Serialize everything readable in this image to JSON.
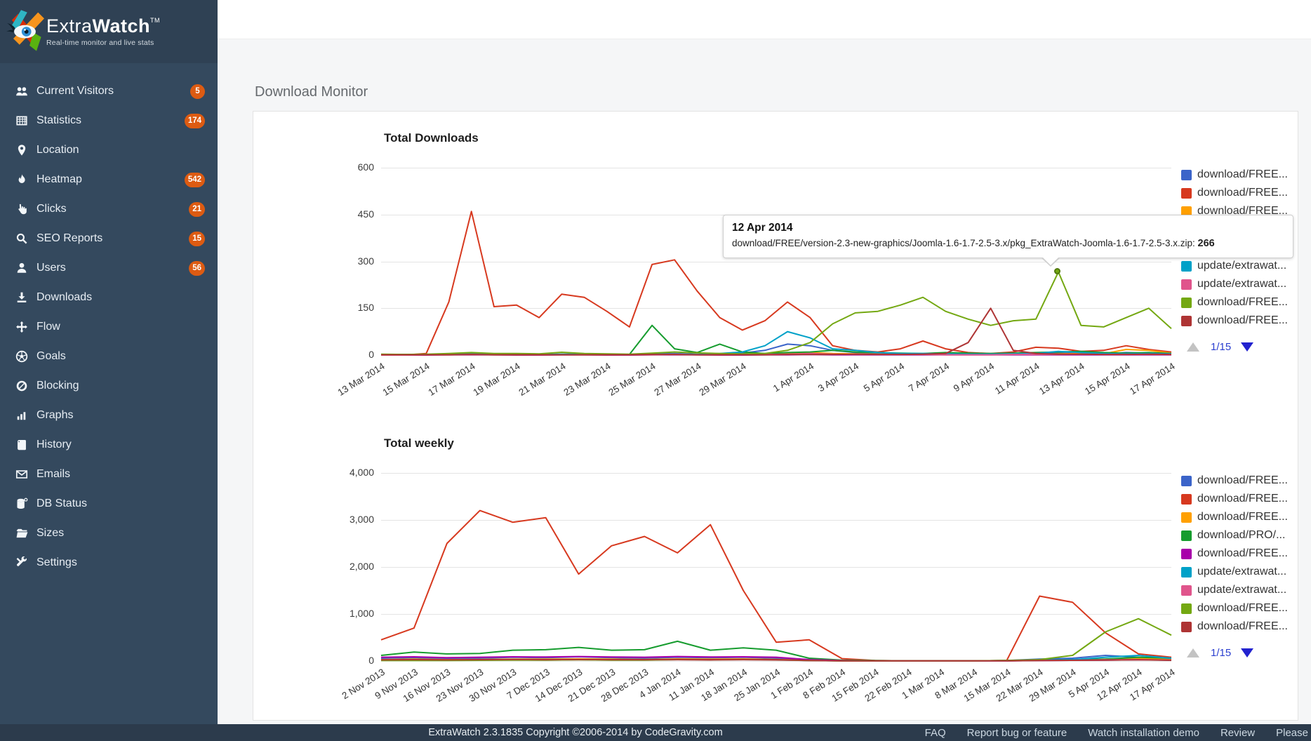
{
  "logo": {
    "name_light": "Extra",
    "name_bold": "Watch",
    "tm": "TM",
    "tagline": "Real-time monitor and live stats"
  },
  "page": {
    "title": "Download Monitor"
  },
  "sidebar": {
    "items": [
      {
        "label": "Current Visitors",
        "icon": "users",
        "badge": "5"
      },
      {
        "label": "Statistics",
        "icon": "table",
        "badge": "174"
      },
      {
        "label": "Location",
        "icon": "map-pin",
        "badge": ""
      },
      {
        "label": "Heatmap",
        "icon": "flame",
        "badge": "542"
      },
      {
        "label": "Clicks",
        "icon": "hand-pointer",
        "badge": "21"
      },
      {
        "label": "SEO Reports",
        "icon": "magnifier",
        "badge": "15"
      },
      {
        "label": "Users",
        "icon": "user",
        "badge": "56"
      },
      {
        "label": "Downloads",
        "icon": "download",
        "badge": ""
      },
      {
        "label": "Flow",
        "icon": "move-arrows",
        "badge": ""
      },
      {
        "label": "Goals",
        "icon": "soccer-ball",
        "badge": ""
      },
      {
        "label": "Blocking",
        "icon": "no-entry",
        "badge": ""
      },
      {
        "label": "Graphs",
        "icon": "bar-chart",
        "badge": ""
      },
      {
        "label": "History",
        "icon": "book",
        "badge": ""
      },
      {
        "label": "Emails",
        "icon": "envelope",
        "badge": ""
      },
      {
        "label": "DB Status",
        "icon": "database",
        "badge": ""
      },
      {
        "label": "Sizes",
        "icon": "folder",
        "badge": ""
      },
      {
        "label": "Settings",
        "icon": "tools",
        "badge": ""
      }
    ]
  },
  "tooltip": {
    "title": "12 Apr 2014",
    "text": "download/FREE/version-2.3-new-graphics/Joomla-1.6-1.7-2.5-3.x/pkg_ExtraWatch-Joomla-1.6-1.7-2.5-3.x.zip: ",
    "value": "266"
  },
  "chart_data": [
    {
      "type": "line",
      "title": "Total Downloads",
      "ylim": [
        0,
        600
      ],
      "ytick_values": [
        0,
        150,
        300,
        450,
        600
      ],
      "ytick_labels": [
        "0",
        "150",
        "300",
        "450",
        "600"
      ],
      "grid": true,
      "legend_position": "right",
      "pagination": "1/15",
      "tick_indices": [
        0,
        2,
        4,
        6,
        8,
        10,
        12,
        14,
        16,
        19,
        21,
        23,
        25,
        27,
        29,
        31,
        33,
        35
      ],
      "tick_labels": [
        "13 Mar 2014",
        "15 Mar 2014",
        "17 Mar 2014",
        "19 Mar 2014",
        "21 Mar 2014",
        "23 Mar 2014",
        "25 Mar 2014",
        "27 Mar 2014",
        "29 Mar 2014",
        "1 Apr 2014",
        "3 Apr 2014",
        "5 Apr 2014",
        "7 Apr 2014",
        "9 Apr 2014",
        "11 Apr 2014",
        "13 Apr 2014",
        "15 Apr 2014",
        "17 Apr 2014"
      ],
      "highlight": {
        "series": 7,
        "index": 30,
        "value": 266
      },
      "series": [
        {
          "name": "download/FREE...",
          "color": "#3b64c9",
          "values": [
            1,
            1,
            2,
            3,
            5,
            3,
            3,
            2,
            3,
            3,
            2,
            2,
            4,
            5,
            3,
            4,
            6,
            15,
            35,
            30,
            15,
            8,
            5,
            4,
            4,
            3,
            3,
            3,
            3,
            4,
            6,
            5,
            4,
            8,
            6,
            5
          ]
        },
        {
          "name": "download/FREE...",
          "color": "#d7391f",
          "values": [
            0,
            0,
            5,
            170,
            460,
            155,
            160,
            120,
            195,
            185,
            140,
            90,
            290,
            305,
            205,
            120,
            80,
            110,
            170,
            120,
            30,
            15,
            10,
            20,
            45,
            20,
            8,
            5,
            10,
            25,
            22,
            12,
            15,
            30,
            18,
            10
          ]
        },
        {
          "name": "download/FREE...",
          "color": "#ffa000",
          "values": [
            1,
            1,
            1,
            2,
            3,
            2,
            2,
            1,
            2,
            2,
            1,
            1,
            2,
            3,
            2,
            2,
            2,
            3,
            5,
            8,
            5,
            4,
            3,
            3,
            3,
            2,
            2,
            2,
            3,
            3,
            4,
            5,
            4,
            18,
            15,
            6
          ]
        },
        {
          "name": "download/PRO/...",
          "color": "#169c2e",
          "values": [
            2,
            2,
            2,
            3,
            3,
            3,
            2,
            2,
            3,
            3,
            2,
            2,
            95,
            20,
            8,
            35,
            10,
            5,
            8,
            10,
            15,
            10,
            8,
            6,
            5,
            8,
            6,
            5,
            6,
            8,
            10,
            12,
            8,
            6,
            8,
            5
          ]
        },
        {
          "name": "download/FREE...",
          "color": "#a800aa",
          "values": [
            0,
            0,
            0,
            1,
            1,
            1,
            0,
            0,
            1,
            1,
            0,
            0,
            1,
            1,
            1,
            0,
            0,
            1,
            1,
            2,
            1,
            1,
            1,
            1,
            1,
            1,
            1,
            1,
            1,
            1,
            1,
            1,
            1,
            1,
            1,
            1
          ]
        },
        {
          "name": "update/extrawat...",
          "color": "#00a1c8",
          "values": [
            1,
            1,
            2,
            2,
            3,
            2,
            2,
            2,
            2,
            2,
            2,
            2,
            3,
            3,
            2,
            5,
            10,
            30,
            75,
            55,
            20,
            15,
            8,
            5,
            5,
            4,
            3,
            3,
            4,
            5,
            12,
            8,
            5,
            4,
            5,
            4
          ]
        },
        {
          "name": "update/extrawat...",
          "color": "#e0558c",
          "values": [
            0,
            0,
            1,
            1,
            2,
            1,
            1,
            1,
            1,
            1,
            1,
            1,
            1,
            2,
            1,
            1,
            1,
            2,
            3,
            5,
            3,
            2,
            2,
            2,
            2,
            1,
            1,
            1,
            2,
            2,
            2,
            3,
            2,
            2,
            2,
            2
          ]
        },
        {
          "name": "download/FREE...",
          "color": "#74a812",
          "values": [
            3,
            2,
            3,
            5,
            8,
            5,
            5,
            4,
            9,
            5,
            4,
            3,
            6,
            10,
            7,
            5,
            4,
            5,
            15,
            40,
            100,
            135,
            140,
            160,
            185,
            140,
            115,
            95,
            110,
            115,
            266,
            95,
            90,
            120,
            150,
            85
          ]
        },
        {
          "name": "download/FREE...",
          "color": "#ae3434",
          "values": [
            1,
            1,
            1,
            1,
            2,
            1,
            1,
            1,
            1,
            1,
            1,
            1,
            2,
            2,
            1,
            1,
            1,
            1,
            2,
            2,
            2,
            3,
            2,
            2,
            3,
            5,
            40,
            150,
            15,
            5,
            3,
            3,
            2,
            2,
            3,
            2
          ]
        }
      ]
    },
    {
      "type": "line",
      "title": "Total weekly",
      "ylim": [
        0,
        4000
      ],
      "ytick_values": [
        0,
        1000,
        2000,
        3000,
        4000
      ],
      "ytick_labels": [
        "0",
        "1,000",
        "2,000",
        "3,000",
        "4,000"
      ],
      "grid": true,
      "legend_position": "right",
      "pagination": "1/15",
      "tick_indices": [
        0,
        1,
        2,
        3,
        4,
        5,
        6,
        7,
        8,
        9,
        10,
        11,
        12,
        13,
        14,
        15,
        16,
        17,
        18,
        19,
        20,
        21,
        22,
        23,
        24
      ],
      "tick_labels": [
        "2 Nov 2013",
        "9 Nov 2013",
        "16 Nov 2013",
        "23 Nov 2013",
        "30 Nov 2013",
        "7 Dec 2013",
        "14 Dec 2013",
        "21 Dec 2013",
        "28 Dec 2013",
        "4 Jan 2014",
        "11 Jan 2014",
        "18 Jan 2014",
        "25 Jan 2014",
        "1 Feb 2014",
        "8 Feb 2014",
        "15 Feb 2014",
        "22 Feb 2014",
        "1 Mar 2014",
        "8 Mar 2014",
        "15 Mar 2014",
        "22 Mar 2014",
        "29 Mar 2014",
        "5 Apr 2014",
        "12 Apr 2014",
        "17 Apr 2014"
      ],
      "series": [
        {
          "name": "download/FREE...",
          "color": "#3b64c9",
          "values": [
            60,
            70,
            50,
            60,
            80,
            70,
            90,
            70,
            60,
            80,
            70,
            80,
            60,
            30,
            10,
            5,
            5,
            5,
            5,
            10,
            40,
            60,
            120,
            80,
            60
          ]
        },
        {
          "name": "download/FREE...",
          "color": "#d7391f",
          "values": [
            450,
            700,
            2500,
            3200,
            2950,
            3050,
            1850,
            2450,
            2650,
            2300,
            2900,
            1500,
            400,
            450,
            50,
            10,
            5,
            5,
            5,
            10,
            1380,
            1250,
            600,
            150,
            80
          ]
        },
        {
          "name": "download/FREE...",
          "color": "#ffa000",
          "values": [
            30,
            40,
            30,
            35,
            40,
            40,
            45,
            40,
            35,
            45,
            40,
            45,
            35,
            15,
            5,
            5,
            5,
            5,
            5,
            5,
            15,
            25,
            40,
            60,
            30
          ]
        },
        {
          "name": "download/PRO/...",
          "color": "#169c2e",
          "values": [
            120,
            190,
            150,
            160,
            230,
            240,
            290,
            230,
            240,
            420,
            230,
            280,
            230,
            60,
            20,
            10,
            5,
            5,
            5,
            10,
            20,
            30,
            40,
            80,
            60
          ]
        },
        {
          "name": "download/FREE...",
          "color": "#a800aa",
          "values": [
            80,
            90,
            70,
            80,
            90,
            85,
            95,
            85,
            80,
            95,
            85,
            90,
            80,
            30,
            10,
            5,
            5,
            5,
            5,
            5,
            10,
            15,
            20,
            25,
            20
          ]
        },
        {
          "name": "update/extrawat...",
          "color": "#00a1c8",
          "values": [
            20,
            25,
            20,
            25,
            30,
            25,
            30,
            25,
            25,
            30,
            25,
            30,
            25,
            10,
            5,
            5,
            5,
            5,
            5,
            5,
            15,
            30,
            80,
            120,
            60
          ]
        },
        {
          "name": "update/extrawat...",
          "color": "#e0558c",
          "values": [
            15,
            20,
            15,
            20,
            25,
            20,
            25,
            20,
            20,
            25,
            20,
            25,
            20,
            10,
            5,
            3,
            3,
            3,
            3,
            5,
            10,
            15,
            25,
            30,
            20
          ]
        },
        {
          "name": "download/FREE...",
          "color": "#74a812",
          "values": [
            10,
            10,
            10,
            15,
            20,
            20,
            25,
            20,
            20,
            30,
            25,
            30,
            25,
            10,
            5,
            5,
            5,
            5,
            5,
            10,
            30,
            120,
            620,
            900,
            550
          ]
        },
        {
          "name": "download/FREE...",
          "color": "#ae3434",
          "values": [
            25,
            30,
            25,
            30,
            35,
            30,
            35,
            30,
            30,
            35,
            30,
            35,
            30,
            12,
            5,
            3,
            3,
            3,
            3,
            5,
            10,
            15,
            20,
            25,
            15
          ]
        }
      ]
    }
  ],
  "footer": {
    "copyright": "ExtraWatch 2.3.1835 Copyright ©2006-2014 by CodeGravity.com",
    "links": [
      "FAQ",
      "Report bug or feature",
      "Watch installation demo",
      "Review",
      "Please"
    ]
  },
  "colors": {
    "sidebar_bg": "#34495e",
    "logo_bg": "#2f4154",
    "badge": "#dd5b12",
    "footer_bg": "#2c3b4c",
    "pagination_blue": "#2b3fd0",
    "grid": "#e4e4e4"
  }
}
